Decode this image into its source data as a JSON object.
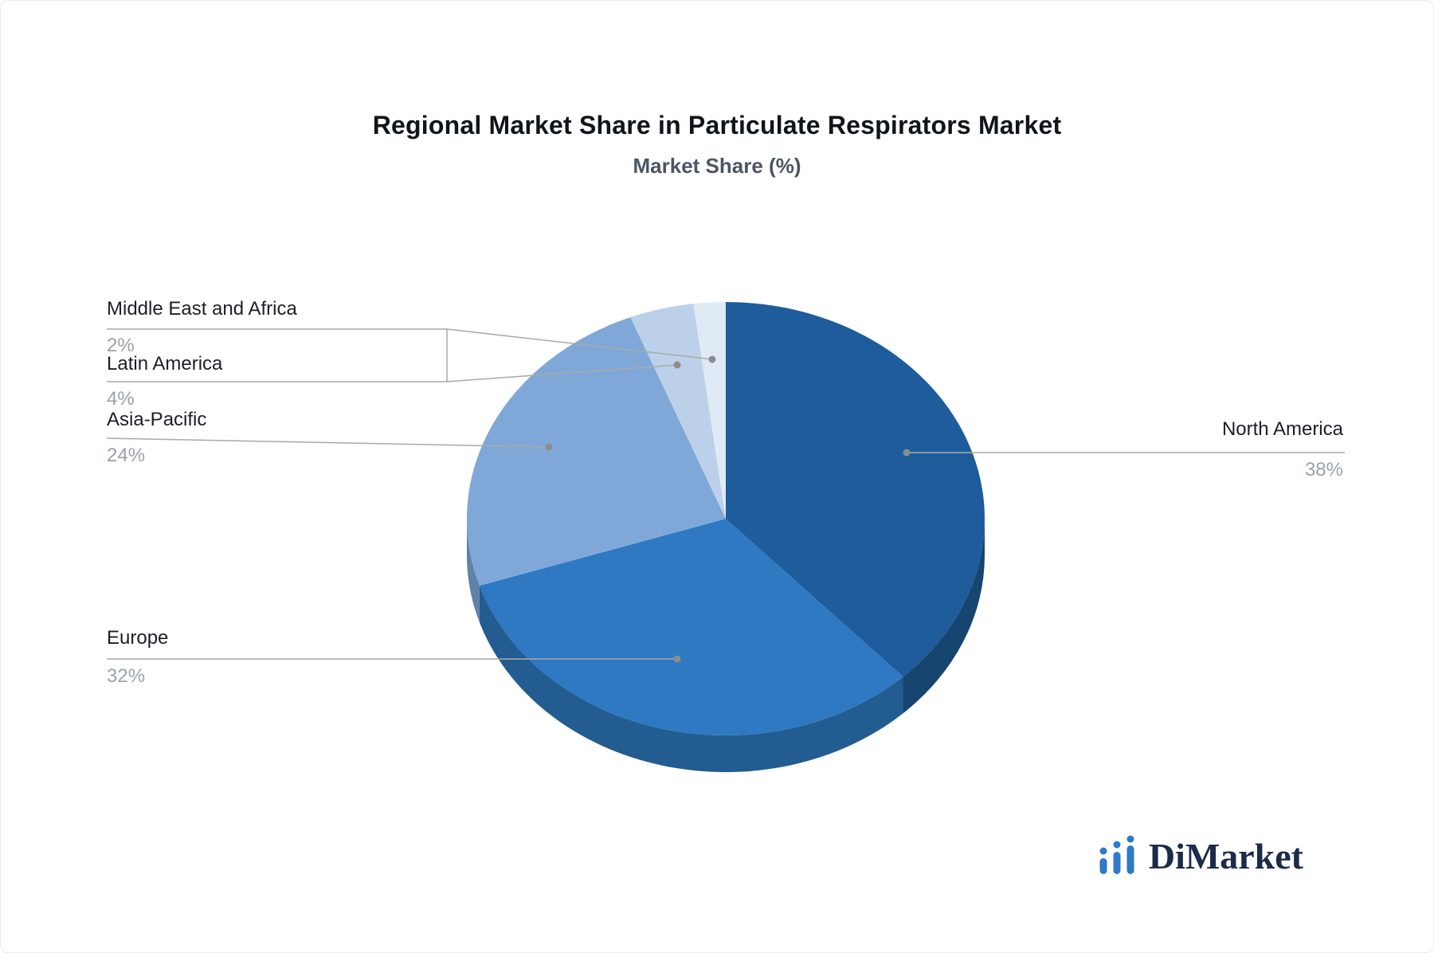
{
  "header": {
    "title": "Regional Market Share in Particulate Respirators Market",
    "subtitle": "Market Share (%)"
  },
  "brand": {
    "name": "DiMarket",
    "text_color": "#1c2b4a",
    "icon_color": "#2e79c8",
    "icon": "mini-bar-chart-icon"
  },
  "chart_data": {
    "type": "pie",
    "title": "Regional Market Share in Particulate Respirators Market",
    "subtitle": "Market Share (%)",
    "unit": "%",
    "direction": "clockwise",
    "start_angle_deg": 0,
    "style": "3d-pie",
    "legend_position": "callout-labels",
    "slices": [
      {
        "label": "North America",
        "value": 38,
        "pct_label": "38%",
        "color": "#1E5C9B",
        "side_color": "#16456F"
      },
      {
        "label": "Europe",
        "value": 32,
        "pct_label": "32%",
        "color": "#2E79C2",
        "side_color": "#225C90"
      },
      {
        "label": "Asia-Pacific",
        "value": 24,
        "pct_label": "24%",
        "color": "#7FA8D9",
        "side_color": "#5E82A8"
      },
      {
        "label": "Latin America",
        "value": 4,
        "pct_label": "4%",
        "color": "#BCD1E9",
        "side_color": "#93A8C2"
      },
      {
        "label": "Middle East and Africa",
        "value": 2,
        "pct_label": "2%",
        "color": "#E0EAF5",
        "side_color": "#B5C3D2"
      }
    ]
  }
}
